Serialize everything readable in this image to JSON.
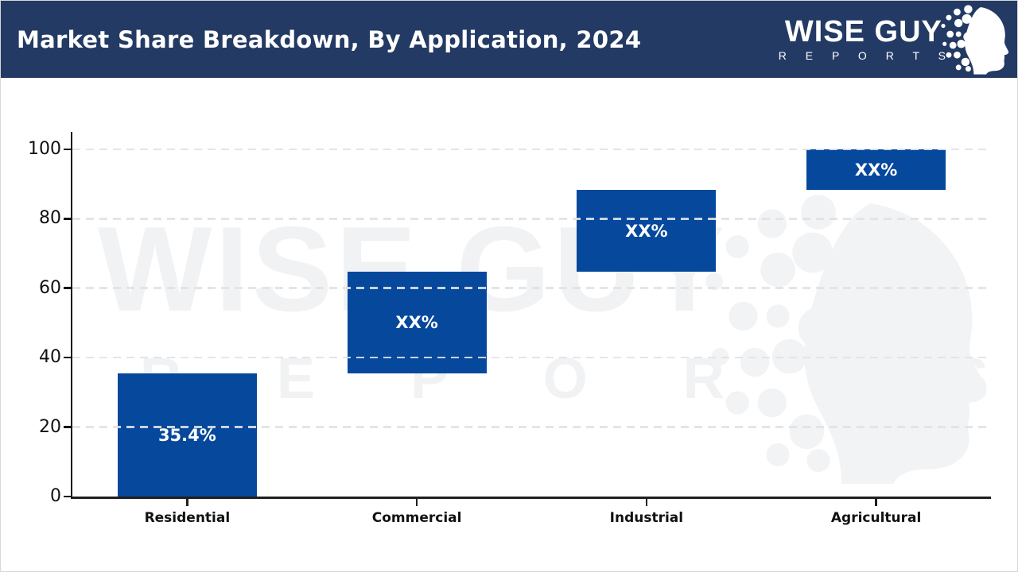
{
  "header": {
    "title": "Market Share Breakdown, By Application, 2024",
    "background_color": "#233a64",
    "logo": {
      "name": "WISE GUY",
      "sub": "R E P O R T S",
      "icon": "face-profile-dots"
    }
  },
  "watermark": {
    "line1": "WISE GUY",
    "line2": "R E P O R T S",
    "icon": "face-profile-dots"
  },
  "chart_data": {
    "type": "bar",
    "variant": "waterfall",
    "title": "Market Share Breakdown, By Application, 2024",
    "categories": [
      "Residential",
      "Commercial",
      "Industrial",
      "Agricultural"
    ],
    "bars": [
      {
        "category": "Residential",
        "start": 0,
        "end": 35.4,
        "segment_value": 35.4,
        "label": "35.4%"
      },
      {
        "category": "Commercial",
        "start": 35.4,
        "end": 64.7,
        "segment_value": 29.3,
        "label": "XX%"
      },
      {
        "category": "Industrial",
        "start": 64.7,
        "end": 88.2,
        "segment_value": 23.5,
        "label": "XX%"
      },
      {
        "category": "Agricultural",
        "start": 88.2,
        "end": 100,
        "segment_value": 11.8,
        "label": "XX%"
      }
    ],
    "xlabel": "",
    "ylabel": "",
    "yticks": [
      0,
      20,
      40,
      60,
      80,
      100
    ],
    "ylim": [
      0,
      105
    ],
    "grid": "horizontal-dashed",
    "legend": "none",
    "bar_color": "#05489c",
    "bar_label_color": "#ffffff",
    "axis_color": "#1f1f1f",
    "gridline_color": "#e1e2e5"
  }
}
